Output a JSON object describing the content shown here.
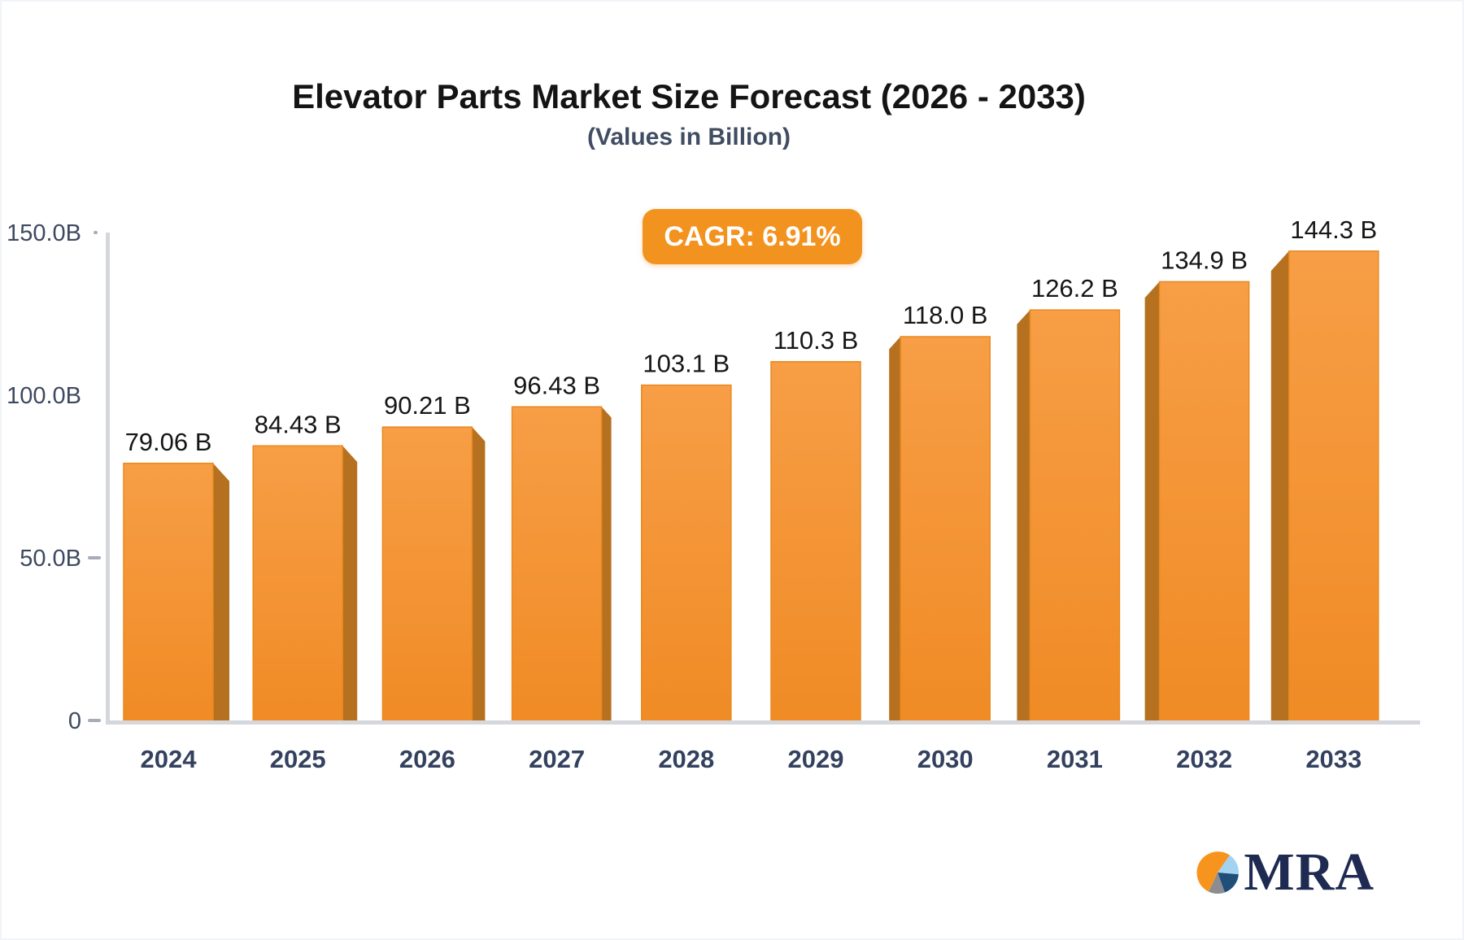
{
  "title": "Elevator Parts Market Size Forecast (2026 - 2033)",
  "subtitle": "(Values in Billion)",
  "badge": {
    "label": "CAGR: 6.91%",
    "bg": "#F3931F"
  },
  "chart_data": {
    "type": "bar",
    "categories": [
      "2024",
      "2025",
      "2026",
      "2027",
      "2028",
      "2029",
      "2030",
      "2031",
      "2032",
      "2033"
    ],
    "values": [
      79.06,
      84.43,
      90.21,
      96.43,
      103.1,
      110.3,
      118.0,
      126.2,
      134.9,
      144.3
    ],
    "bar_labels": [
      "79.06 B",
      "84.43 B",
      "90.21 B",
      "96.43 B",
      "103.1 B",
      "110.3 B",
      "118.0 B",
      "126.2 B",
      "134.9 B",
      "144.3 B"
    ],
    "title": "Elevator Parts Market Size Forecast (2026 - 2033)",
    "subtitle": "(Values in Billion)",
    "xlabel": "",
    "ylabel": "",
    "ylim": [
      0,
      150
    ],
    "y_ticks": [
      {
        "label": "150.0B",
        "value": 150
      },
      {
        "label": "100.0B",
        "value": 100
      },
      {
        "label": "50.0B",
        "value": 50
      },
      {
        "label": "0",
        "value": 0
      }
    ],
    "legend": null,
    "grid": "off",
    "colors": {
      "bar_top": "#F79E46",
      "bar_bottom": "#F08B25",
      "bar_edge": "#E8891F",
      "bar_side": "#B57120",
      "axis_line": "#D5D7DD",
      "tick_mark": "#A6ACB8",
      "value_label": "#161616",
      "axis_label": "#3D4961",
      "year_label": "#33415F"
    }
  },
  "logo": {
    "text": "MRA",
    "icon": "pie-chart-icon",
    "icon_colors": {
      "orange": "#F7941E",
      "light_blue": "#A3D3F0",
      "navy": "#1F4E79",
      "gray": "#8C8C91"
    }
  }
}
